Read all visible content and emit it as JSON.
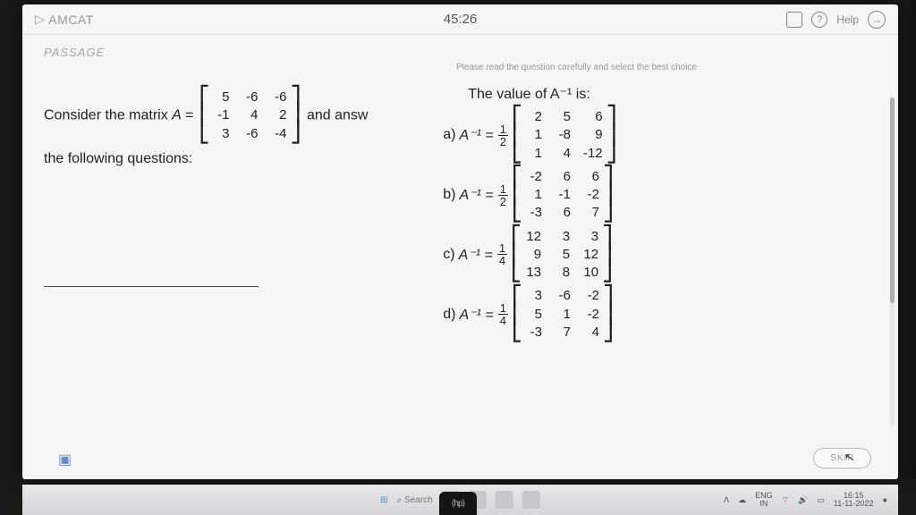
{
  "header": {
    "brand": "AMCAT",
    "timer": "45:26",
    "help_label": "Help"
  },
  "passage_label": "PASSAGE",
  "instruction": "Please read the question carefully and select the best choice",
  "question": {
    "line1_prefix": "Consider the matrix ",
    "line1_var": "A =",
    "line1_suffix": " and answ",
    "line2": "the following questions:",
    "matrix_A": [
      [
        5,
        -6,
        -6
      ],
      [
        -1,
        4,
        2
      ],
      [
        3,
        -6,
        -4
      ]
    ]
  },
  "answers": {
    "title": "The value of A⁻¹ is:",
    "inv_label": "A⁻¹ =",
    "options": [
      {
        "label": "a)",
        "num": "1",
        "den": "2",
        "m": [
          [
            2,
            5,
            6
          ],
          [
            1,
            -8,
            9
          ],
          [
            1,
            4,
            -12
          ]
        ]
      },
      {
        "label": "b)",
        "num": "1",
        "den": "2",
        "m": [
          [
            -2,
            6,
            6
          ],
          [
            1,
            -1,
            -2
          ],
          [
            -3,
            6,
            7
          ]
        ]
      },
      {
        "label": "c)",
        "num": "1",
        "den": "4",
        "m": [
          [
            12,
            3,
            3
          ],
          [
            9,
            5,
            12
          ],
          [
            13,
            8,
            10
          ]
        ]
      },
      {
        "label": "d)",
        "num": "1",
        "den": "4",
        "m": [
          [
            3,
            -6,
            -2
          ],
          [
            5,
            1,
            -2
          ],
          [
            -3,
            7,
            4
          ]
        ]
      }
    ]
  },
  "skip": "SKIP",
  "taskbar": {
    "search": "Search",
    "lang1": "ENG",
    "lang2": "IN",
    "time": "16:15",
    "date": "11-11-2022"
  }
}
